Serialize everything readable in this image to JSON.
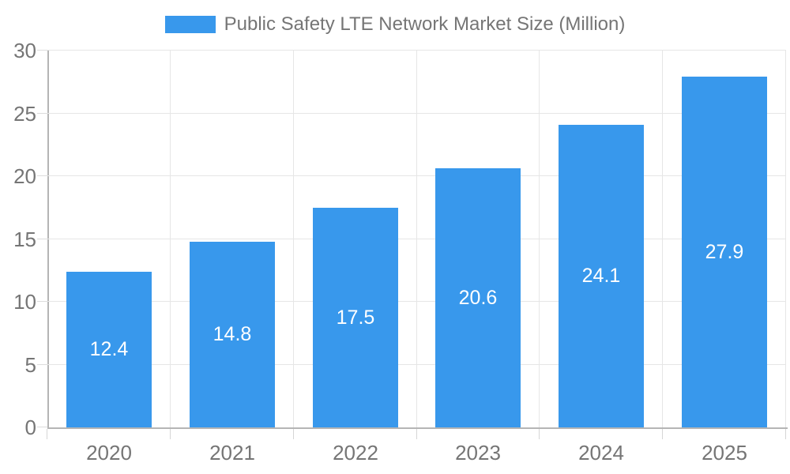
{
  "legend": {
    "label": "Public Safety LTE Network Market Size (Million)",
    "swatch_color": "#3898EC"
  },
  "chart_data": {
    "type": "bar",
    "title": "Public Safety LTE Network Market Size (Million)",
    "categories": [
      "2020",
      "2021",
      "2022",
      "2023",
      "2024",
      "2025"
    ],
    "values": [
      12.4,
      14.8,
      17.5,
      20.6,
      24.1,
      27.9
    ],
    "value_labels": [
      "12.4",
      "14.8",
      "17.5",
      "20.6",
      "24.1",
      "27.9"
    ],
    "xlabel": "",
    "ylabel": "",
    "ylim": [
      0,
      30
    ],
    "yticks": [
      0,
      5,
      10,
      15,
      20,
      25,
      30
    ],
    "grid": true,
    "legend_position": "top",
    "bar_color": "#3898EC",
    "value_label_color": "#ffffff",
    "axis_text_color": "#757575",
    "gridline_color": "#e6e6e6",
    "axis_line_color": "#b5b5b5"
  }
}
